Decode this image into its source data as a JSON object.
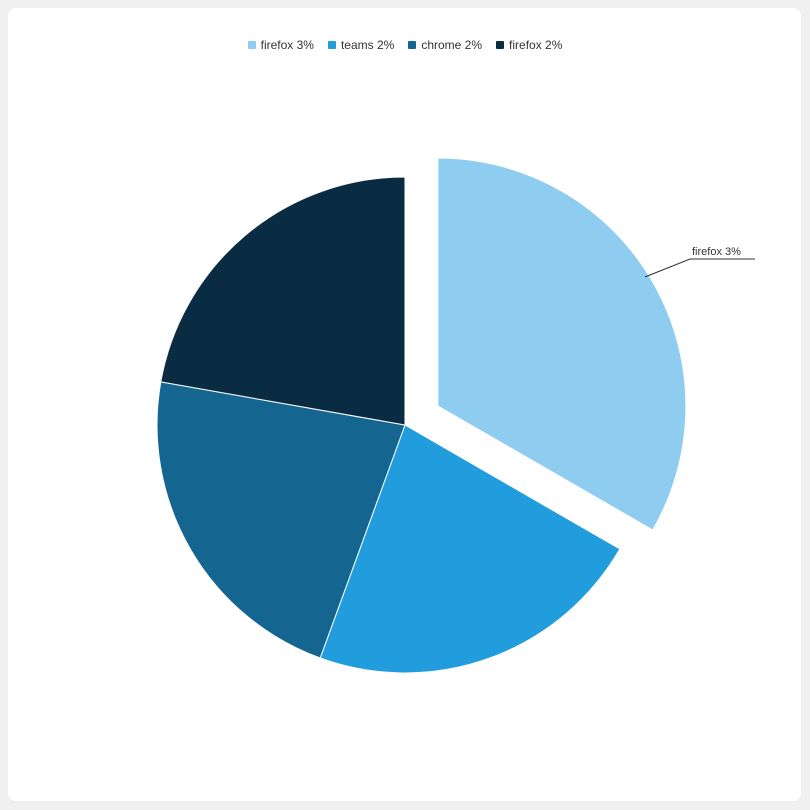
{
  "page": {
    "background_color": "#f0f0f0",
    "card_background_color": "#ffffff"
  },
  "chart_data": {
    "type": "pie",
    "title": "",
    "legend_position": "top",
    "direction": "clockwise",
    "start_angle_deg": 0,
    "slice_border_color": "#ffffff",
    "slices": [
      {
        "label": "firefox",
        "legend_label": "firefox 3%",
        "value": 3,
        "color": "#8FCDF0",
        "exploded": true
      },
      {
        "label": "teams",
        "legend_label": "teams 2%",
        "value": 2,
        "color": "#219CDD",
        "exploded": false
      },
      {
        "label": "chrome",
        "legend_label": "chrome 2%",
        "value": 2,
        "color": "#156591",
        "exploded": false
      },
      {
        "label": "firefox",
        "legend_label": "firefox 2%",
        "value": 2,
        "color": "#0A2C42",
        "exploded": false
      }
    ],
    "datalabel": {
      "text": "firefox 3%",
      "slice_index": 0,
      "connector_color": "#333333"
    }
  }
}
